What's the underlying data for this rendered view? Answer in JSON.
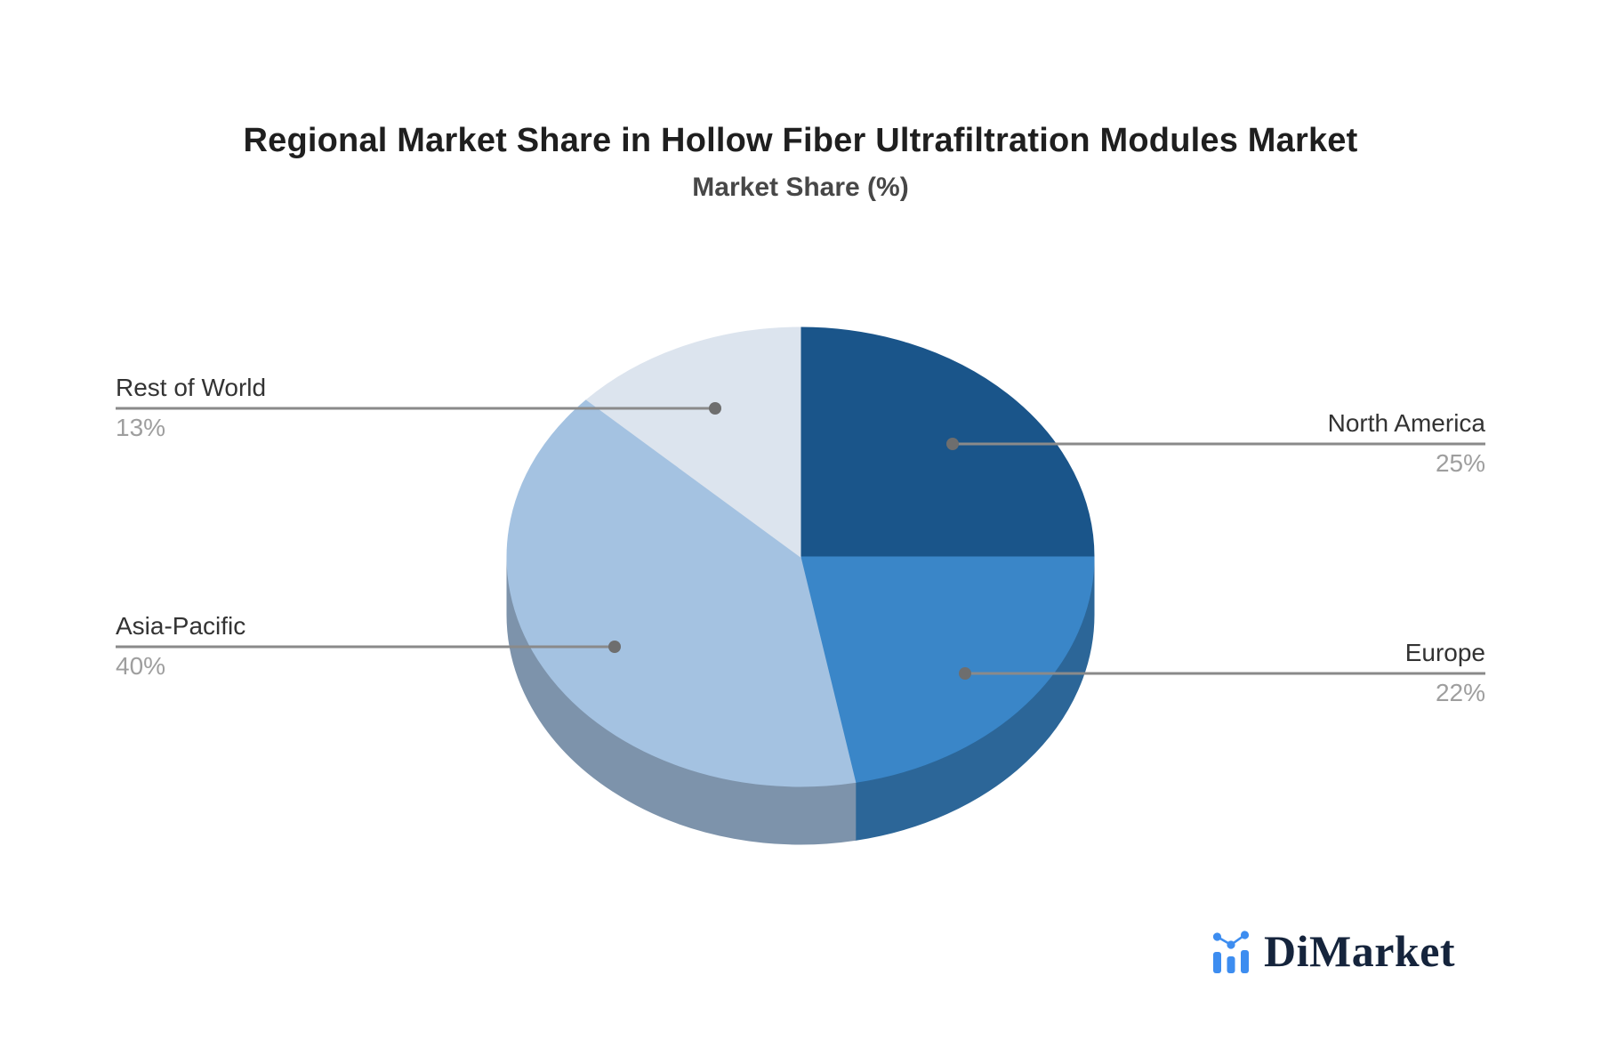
{
  "chart_data": {
    "type": "pie",
    "style": "3d",
    "title": "Regional Market Share in Hollow Fiber Ultrafiltration Modules Market",
    "subtitle": "Market Share (%)",
    "unit": "%",
    "direction": "clockwise",
    "start_angle_deg": 0,
    "legend_position": "callout-labels",
    "slices": [
      {
        "label": "North America",
        "value": 25,
        "percent_label": "25%",
        "color": "#1a558a",
        "callout_side": "right"
      },
      {
        "label": "Europe",
        "value": 22,
        "percent_label": "22%",
        "color": "#3a86c8",
        "callout_side": "right"
      },
      {
        "label": "Asia-Pacific",
        "value": 40,
        "percent_label": "40%",
        "color": "#a4c2e1",
        "callout_side": "left"
      },
      {
        "label": "Rest of World",
        "value": 13,
        "percent_label": "13%",
        "color": "#dce4ee",
        "callout_side": "left"
      }
    ]
  },
  "branding": {
    "logo_text": "DiMarket",
    "logo_icon": "bar-line-chart-icon",
    "logo_text_color": "#15243c",
    "logo_accent_color": "#3d8df0"
  },
  "colors": {
    "background": "#ffffff",
    "title_text": "#1f1f1f",
    "subtitle_text": "#474747",
    "label_text": "#333333",
    "percent_text": "#9e9e9e",
    "leader_line": "#8a8a8a",
    "leader_dot": "#6e6e6e"
  }
}
